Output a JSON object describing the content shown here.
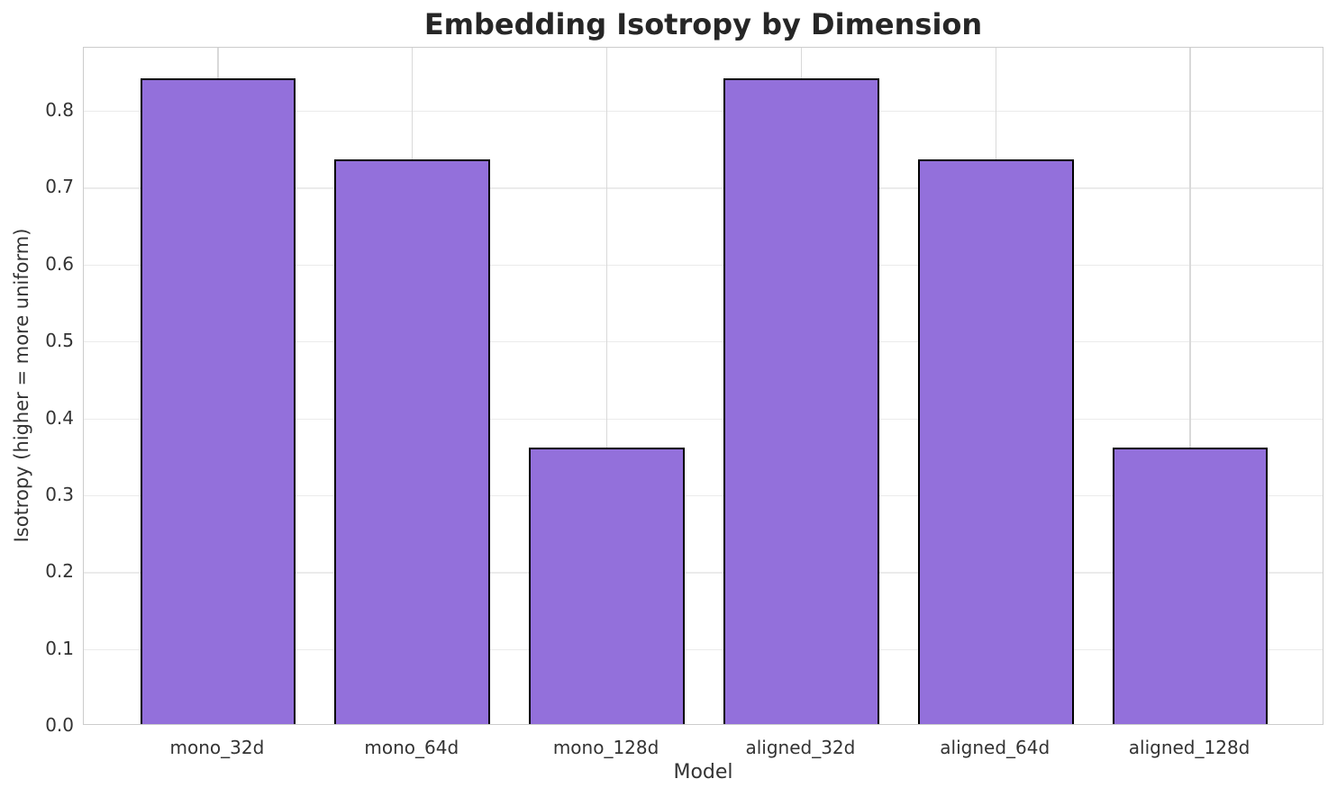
{
  "title": "Embedding Isotropy by Dimension",
  "chart_data": {
    "type": "bar",
    "title": "Embedding Isotropy by Dimension",
    "xlabel": "Model",
    "ylabel": "Isotropy (higher = more uniform)",
    "categories": [
      "mono_32d",
      "mono_64d",
      "mono_128d",
      "aligned_32d",
      "aligned_64d",
      "aligned_128d"
    ],
    "values": [
      0.84,
      0.735,
      0.36,
      0.84,
      0.735,
      0.36
    ],
    "ylim": [
      0,
      0.882
    ],
    "yticks": [
      0.0,
      0.1,
      0.2,
      0.3,
      0.4,
      0.5,
      0.6,
      0.7,
      0.8
    ],
    "ytick_labels": [
      "0.0",
      "0.1",
      "0.2",
      "0.3",
      "0.4",
      "0.5",
      "0.6",
      "0.7",
      "0.8"
    ],
    "grid": true,
    "legend": "none",
    "colors": {
      "bar_fill": "#9370DB",
      "bar_edge": "#000000",
      "grid_horizontal": "#ebebeb",
      "grid_vertical": "#d9d9d9",
      "spine": "#cccccc",
      "title_text": "#262626",
      "tick_text": "#333333"
    }
  }
}
